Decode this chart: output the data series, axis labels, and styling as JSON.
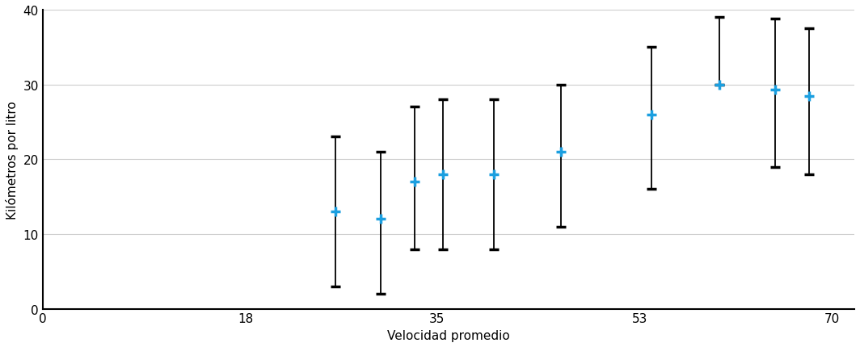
{
  "x": [
    26,
    30,
    33,
    35.5,
    40,
    46,
    54,
    60,
    65,
    68
  ],
  "y": [
    13,
    12,
    17,
    18,
    18,
    21,
    26,
    30,
    29.3,
    28.5
  ],
  "yerr_neg": [
    10,
    10,
    9,
    10,
    10,
    10,
    10,
    0,
    10.3,
    10.5
  ],
  "yerr_pos": [
    10,
    9,
    10,
    10,
    10,
    9,
    9,
    9,
    9.5,
    9
  ],
  "marker_color": "#1B9FE0",
  "error_color": "#000000",
  "xlabel": "Velocidad promedio",
  "ylabel": "Kilómetros por litro",
  "xlim": [
    0,
    72
  ],
  "ylim": [
    0,
    40
  ],
  "xticks": [
    0,
    18,
    35,
    53,
    70
  ],
  "yticks": [
    0,
    10,
    20,
    30,
    40
  ],
  "grid_color": "#cccccc",
  "background_color": "#ffffff",
  "marker_size": 9,
  "capsize": 4,
  "linewidth": 1.3,
  "xlabel_fontsize": 11,
  "ylabel_fontsize": 11,
  "tick_fontsize": 11
}
